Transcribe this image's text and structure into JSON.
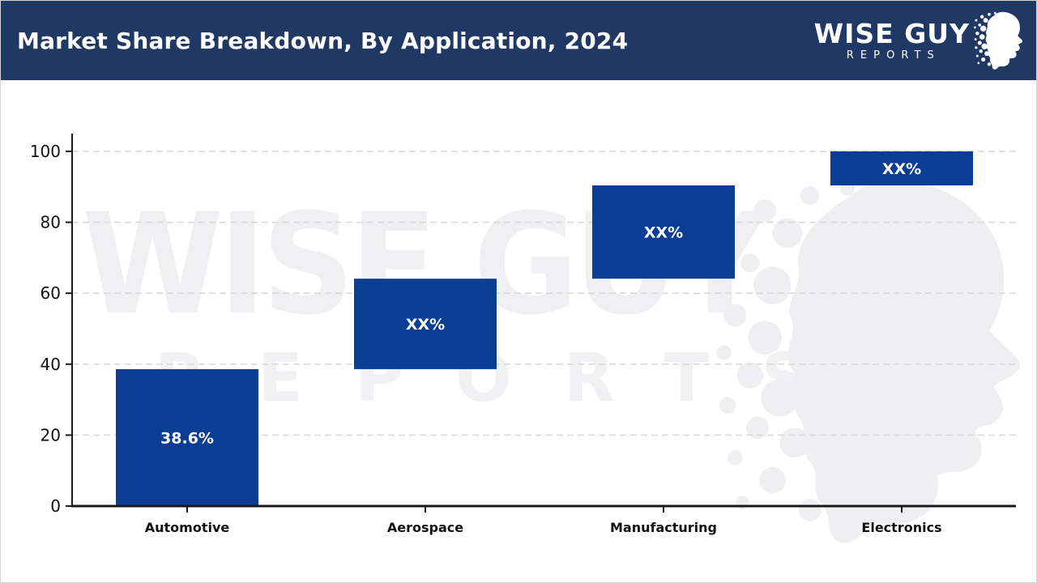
{
  "header": {
    "title": "Market Share Breakdown, By Application, 2024",
    "logo": {
      "primary": "WISE GUY",
      "secondary": "REPORTS"
    }
  },
  "watermark": {
    "primary": "WISE GUY",
    "secondary": "REPORTS"
  },
  "colors": {
    "header_bg": "#1f3864",
    "bar": "#0a3e94",
    "bar_label": "#ffffff",
    "grid": "#d9d9d9",
    "axis": "#1a1a1a",
    "tick_label": "#111111",
    "watermark": "#f0f0f2"
  },
  "chart_data": {
    "type": "bar",
    "subtype": "waterfall",
    "title": "Market Share Breakdown, By Application, 2024",
    "categories": [
      "Automotive",
      "Aerospace",
      "Manufacturing",
      "Electronics"
    ],
    "series": [
      {
        "category": "Automotive",
        "start": 0,
        "end": 38.6,
        "label": "38.6%"
      },
      {
        "category": "Aerospace",
        "start": 38.6,
        "end": 64.1,
        "label": "XX%"
      },
      {
        "category": "Manufacturing",
        "start": 64.1,
        "end": 90.4,
        "label": "XX%"
      },
      {
        "category": "Electronics",
        "start": 90.4,
        "end": 100,
        "label": "XX%"
      }
    ],
    "xlabel": "",
    "ylabel": "",
    "yticks": [
      0,
      20,
      40,
      60,
      80,
      100
    ],
    "ylim": [
      0,
      105
    ],
    "grid": "horizontal-dashed",
    "legend": "none",
    "bar_color": "#0a3e94"
  }
}
